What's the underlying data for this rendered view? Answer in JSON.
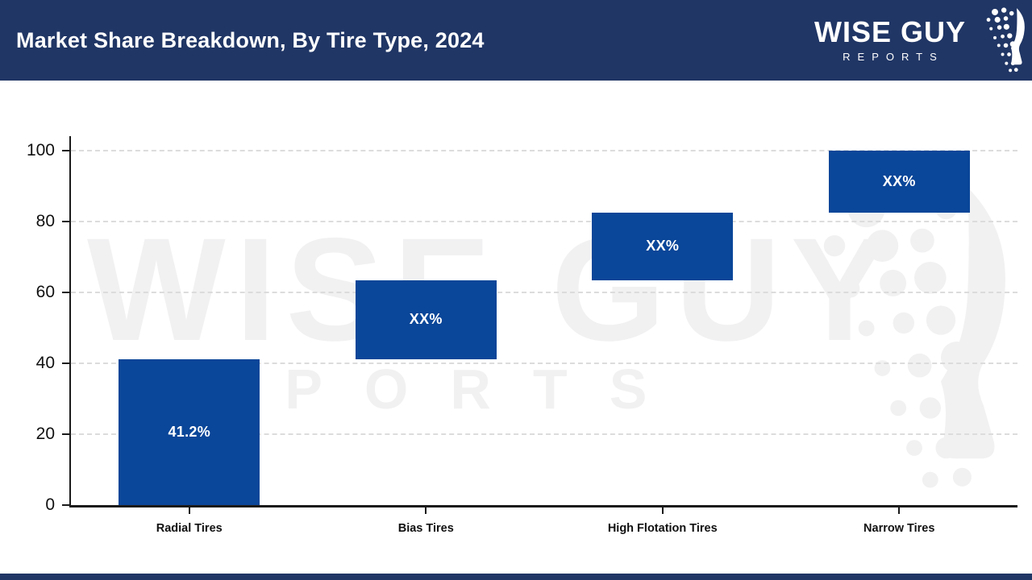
{
  "header": {
    "title": "Market Share Breakdown, By Tire Type, 2024",
    "logo": {
      "name": "WISE GUY",
      "subtitle": "REPORTS"
    }
  },
  "watermark": {
    "line1": "WISE GUY",
    "line2": "REPORTS"
  },
  "chart_data": {
    "type": "bar",
    "subtype": "waterfall",
    "title": "Market Share Breakdown, By Tire Type, 2024",
    "categories": [
      "Radial Tires",
      "Bias Tires",
      "High Flotation Tires",
      "Narrow Tires"
    ],
    "bars": [
      {
        "category": "Radial Tires",
        "start": 0,
        "end": 41.2,
        "label": "41.2%"
      },
      {
        "category": "Bias Tires",
        "start": 41.2,
        "end": 63.5,
        "label": "XX%"
      },
      {
        "category": "High Flotation Tires",
        "start": 63.5,
        "end": 82.5,
        "label": "XX%"
      },
      {
        "category": "Narrow Tires",
        "start": 82.5,
        "end": 100,
        "label": "XX%"
      }
    ],
    "ylim": [
      0,
      100
    ],
    "yticks": [
      0,
      20,
      40,
      60,
      80,
      100
    ],
    "xlabel": "",
    "ylabel": "",
    "grid": "horizontal-dashed",
    "legend": "none"
  },
  "colors": {
    "header_bg": "#203665",
    "footer_bg": "#203665",
    "bar": "#0a4699",
    "bar_label": "#ffffff",
    "grid": "#dcdcdc",
    "axis": "#1a1a1a",
    "watermark": "#f1f1f2"
  }
}
